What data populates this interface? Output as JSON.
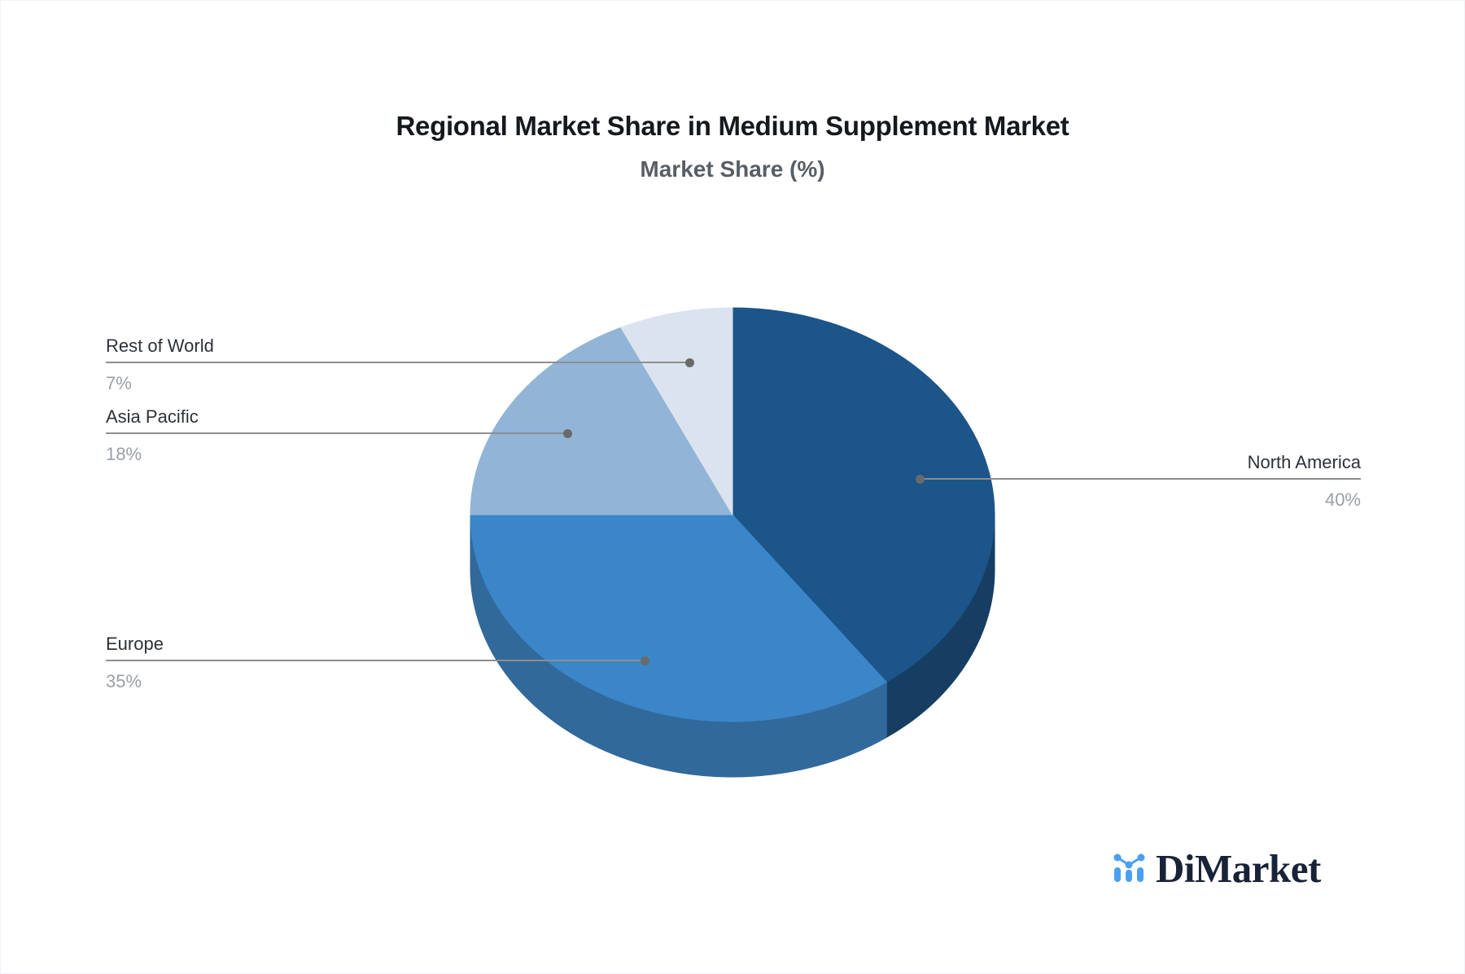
{
  "header": {
    "title": "Regional Market Share in Medium Supplement Market",
    "subtitle": "Market Share (%)"
  },
  "chart_data": {
    "type": "pie",
    "title": "Regional Market Share in Medium Supplement Market",
    "subtitle": "Market Share (%)",
    "unit": "%",
    "labels": [
      "North America",
      "Europe",
      "Asia Pacific",
      "Rest of World"
    ],
    "values": [
      40,
      35,
      18,
      7
    ],
    "colors": [
      "#1b558a",
      "#3a86c8",
      "#91b4d7",
      "#dbe3ee"
    ],
    "side_colors": [
      "#163e63",
      "#31699b",
      "#7ea1c4",
      "#c2cee0"
    ],
    "start_angle_deg": -90,
    "direction": "clockwise",
    "style": "3d",
    "legend_position": "outside-callouts"
  },
  "callouts": [
    {
      "id": "rest-of-world",
      "label": "Rest of World",
      "value_label": "7%"
    },
    {
      "id": "asia-pacific",
      "label": "Asia Pacific",
      "value_label": "18%"
    },
    {
      "id": "europe",
      "label": "Europe",
      "value_label": "35%"
    },
    {
      "id": "north-america",
      "label": "North America",
      "value_label": "40%"
    }
  ],
  "logo": {
    "text": "DiMarket"
  },
  "colors": {
    "leader_line": "#8e8e8e",
    "leader_dot": "#6a6a6a",
    "label_text": "#2d3238",
    "value_text": "#9aa0a7",
    "title_text": "#15191e",
    "subtitle_text": "#575e66",
    "logo_text": "#192338",
    "logo_icon": "#4a9ff2"
  }
}
